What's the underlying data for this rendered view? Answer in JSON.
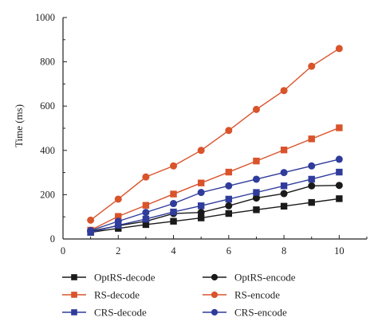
{
  "chart_data": {
    "type": "line",
    "xlabel": "",
    "ylabel": "Time (ms)",
    "xlim": [
      0,
      11
    ],
    "ylim": [
      0,
      1000
    ],
    "x_ticks": [
      0,
      2,
      4,
      6,
      8,
      10
    ],
    "y_ticks": [
      0,
      200,
      400,
      600,
      800,
      1000
    ],
    "legend_position": "bottom",
    "x": [
      1,
      2,
      3,
      4,
      5,
      6,
      7,
      8,
      9,
      10
    ],
    "series": [
      {
        "name": "OptRS-decode",
        "color": "#1a1a1a",
        "marker": "square",
        "values": [
          30,
          48,
          65,
          80,
          95,
          115,
          132,
          148,
          165,
          182
        ]
      },
      {
        "name": "OptRS-encode",
        "color": "#1a1a1a",
        "marker": "circle",
        "values": [
          35,
          60,
          80,
          115,
          120,
          150,
          185,
          205,
          240,
          242
        ]
      },
      {
        "name": "RS-decode",
        "color": "#d9532b",
        "marker": "square",
        "values": [
          40,
          102,
          152,
          203,
          253,
          302,
          352,
          402,
          452,
          502
        ]
      },
      {
        "name": "RS-encode",
        "color": "#d9532b",
        "marker": "circle",
        "values": [
          85,
          180,
          280,
          330,
          400,
          490,
          585,
          670,
          780,
          860
        ]
      },
      {
        "name": "CRS-decode",
        "color": "#2f3c9b",
        "marker": "square",
        "values": [
          30,
          62,
          90,
          122,
          150,
          180,
          210,
          240,
          270,
          302
        ]
      },
      {
        "name": "CRS-encode",
        "color": "#2f3c9b",
        "marker": "circle",
        "values": [
          38,
          80,
          120,
          160,
          210,
          240,
          270,
          300,
          330,
          360
        ]
      }
    ]
  }
}
